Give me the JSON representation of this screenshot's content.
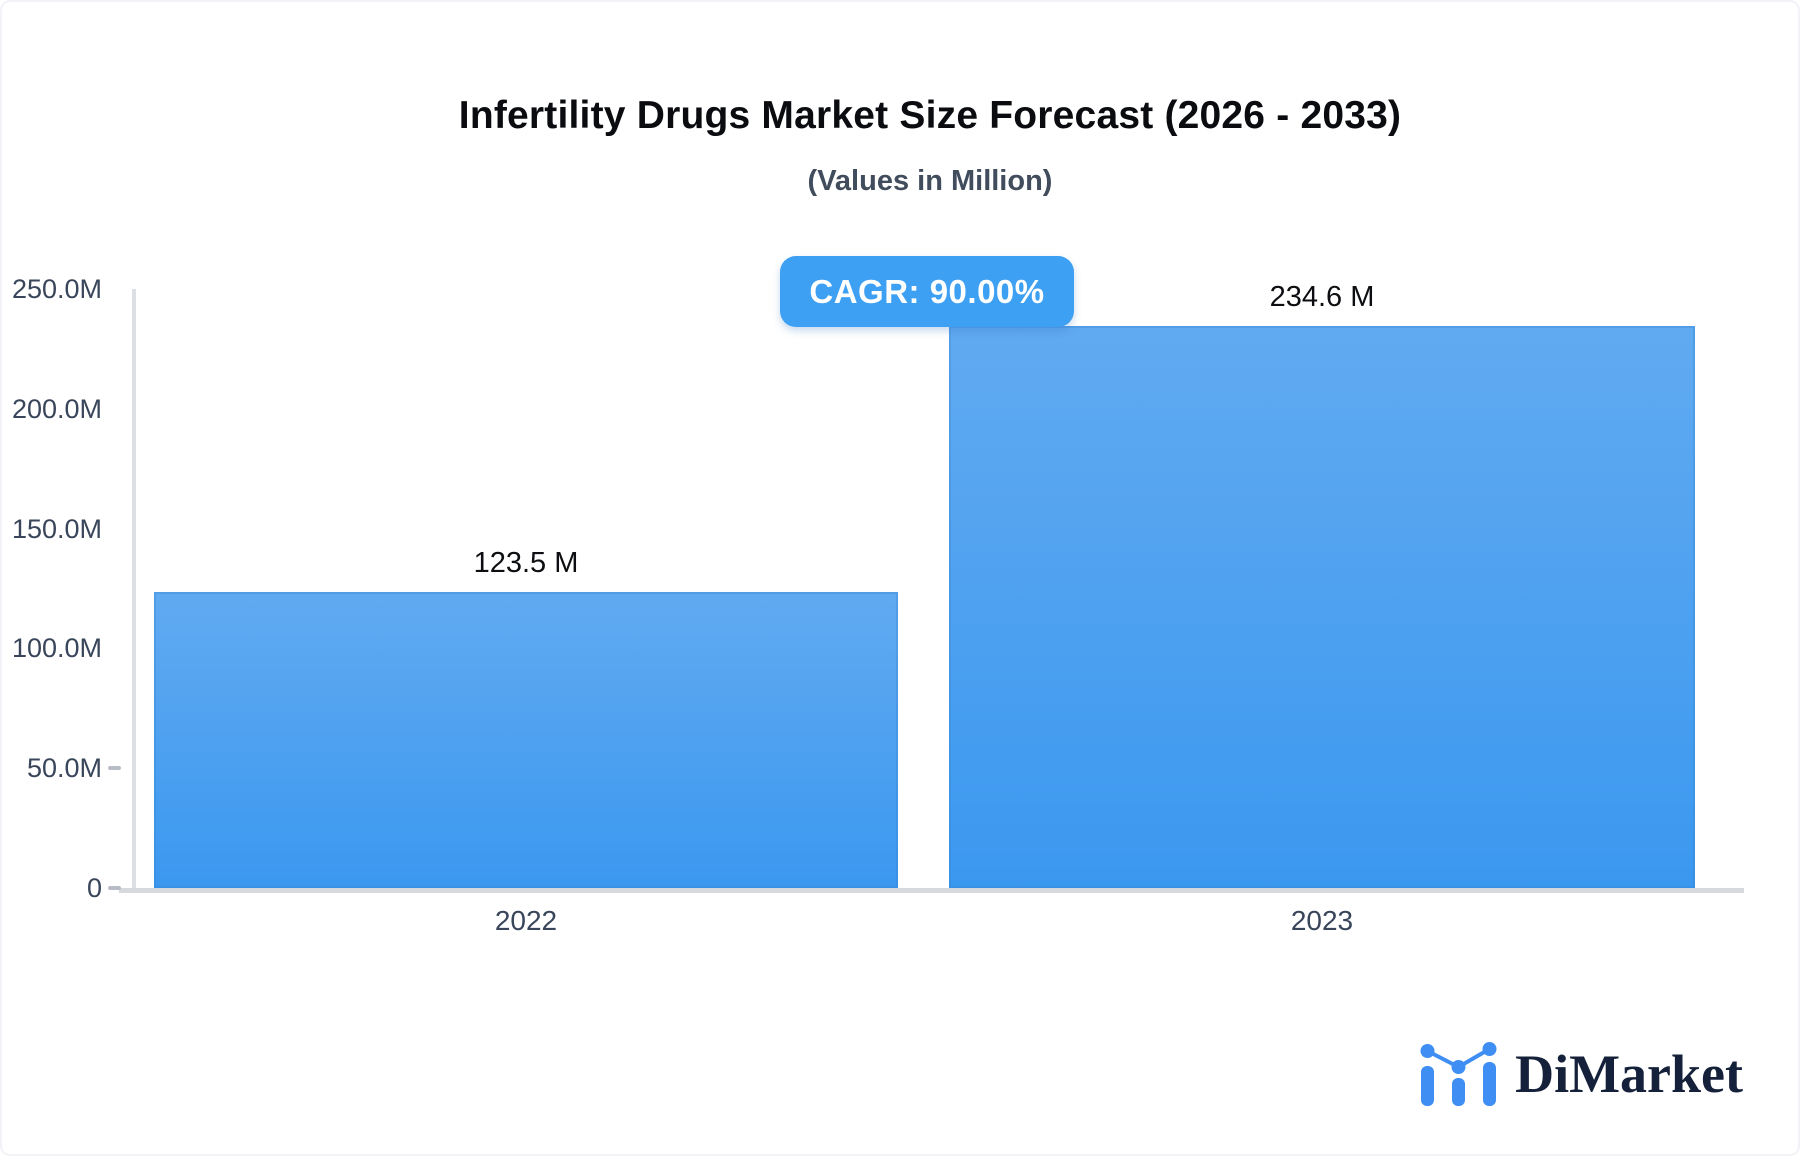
{
  "badge": {
    "text": "CAGR: 90.00%",
    "color": "#3da0f2"
  },
  "logo": {
    "text": "DiMarket",
    "icon": "mini-bar-chart-icon",
    "icon_color": "#3f8ef3",
    "text_color": "#15213a"
  },
  "chart_data": {
    "type": "bar",
    "title": "Infertility Drugs Market Size Forecast (2026 - 2033)",
    "subtitle": "(Values in Million)",
    "categories": [
      "2022",
      "2023"
    ],
    "values": [
      123.5,
      234.6
    ],
    "value_labels": [
      "123.5 M",
      "234.6 M"
    ],
    "unit": "Million",
    "xlabel": "",
    "ylabel": "",
    "ylim": [
      0,
      250
    ],
    "y_ticks": [
      {
        "label": "250.0M",
        "value": 250
      },
      {
        "label": "200.0M",
        "value": 200
      },
      {
        "label": "150.0M",
        "value": 150
      },
      {
        "label": "100.0M",
        "value": 100
      },
      {
        "label": "50.0M",
        "value": 50,
        "dash": true
      },
      {
        "label": "0",
        "value": 0,
        "dash": true
      }
    ],
    "grid": false,
    "legend": null,
    "bar_color_top": "#61aaf1",
    "bar_color_bottom": "#3b98ef",
    "axis_color": "#d9dce1",
    "tick_text_color": "#39455a"
  }
}
